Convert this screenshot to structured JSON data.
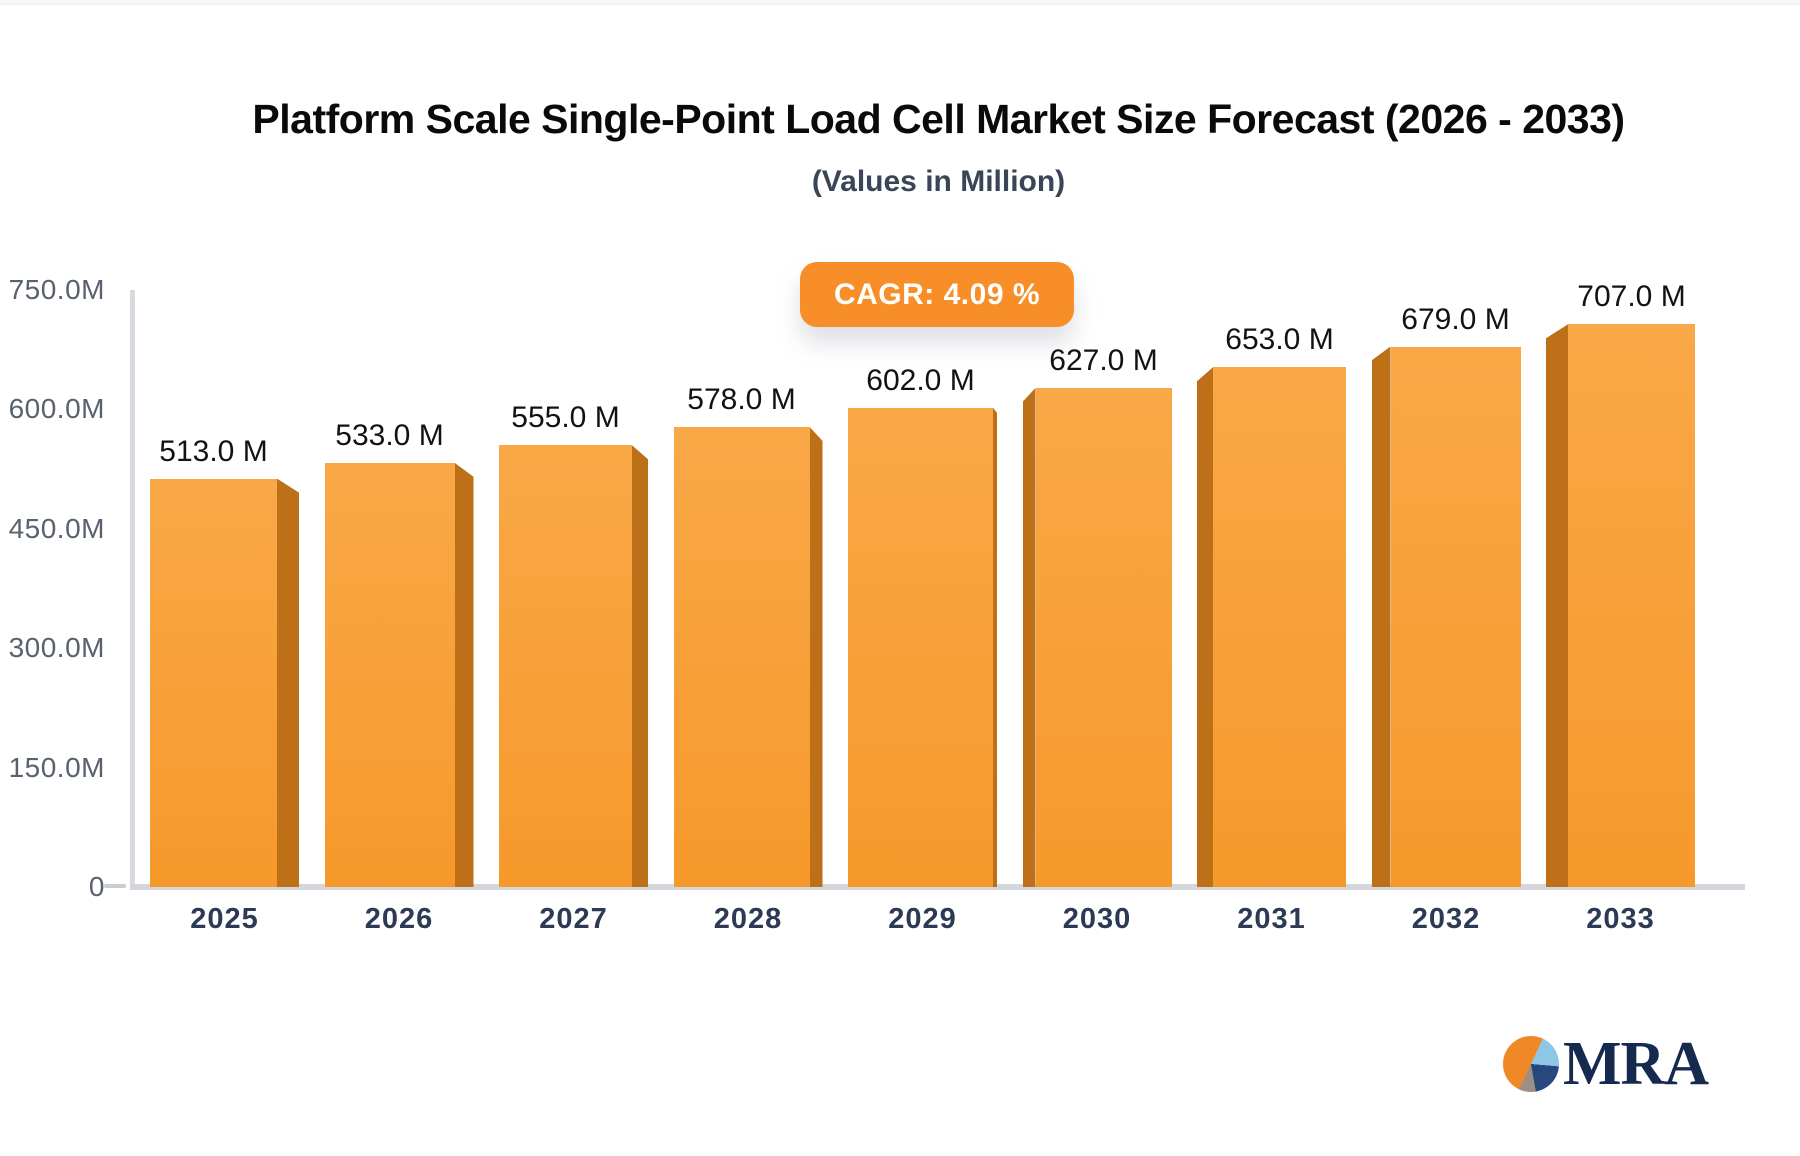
{
  "header": {
    "title": "Platform Scale Single-Point Load Cell Market Size Forecast (2026 - 2033)",
    "subtitle": "(Values in Million)"
  },
  "badge": {
    "label": "CAGR: 4.09 %"
  },
  "chart_data": {
    "type": "bar",
    "title": "Platform Scale Single-Point Load Cell Market Size Forecast (2026 - 2033)",
    "subtitle": "(Values in Million)",
    "categories": [
      "2025",
      "2026",
      "2027",
      "2028",
      "2029",
      "2030",
      "2031",
      "2032",
      "2033"
    ],
    "values": [
      513,
      533,
      555,
      578,
      602,
      627,
      653,
      679,
      707
    ],
    "value_labels": [
      "513.0 M",
      "533.0 M",
      "555.0 M",
      "578.0 M",
      "602.0 M",
      "627.0 M",
      "653.0 M",
      "679.0 M",
      "707.0 M"
    ],
    "ylim": [
      0,
      750
    ],
    "yticks": [
      {
        "label": "750.0M",
        "value": 750
      },
      {
        "label": "600.0M",
        "value": 600
      },
      {
        "label": "450.0M",
        "value": 450
      },
      {
        "label": "300.0M",
        "value": 300
      },
      {
        "label": "150.0M",
        "value": 150
      },
      {
        "label": "0",
        "value": 0
      }
    ],
    "grid": false,
    "legend": false,
    "bar_color_top": "#f9a847",
    "bar_color_bottom": "#f6992b",
    "bar_side_color": "#bd7017",
    "axis_color": "#d8dadf"
  },
  "logo": {
    "text": "MRA"
  },
  "colors": {
    "accent_orange": "#f78e28",
    "title_text": "#0a0a0a",
    "subtitle_text": "#3a4556",
    "tick_text": "#59616f",
    "category_text": "#2c3a55",
    "logo_navy": "#16294e",
    "logo_lightblue": "#8ec6e8",
    "logo_gray": "#9b8f86"
  }
}
